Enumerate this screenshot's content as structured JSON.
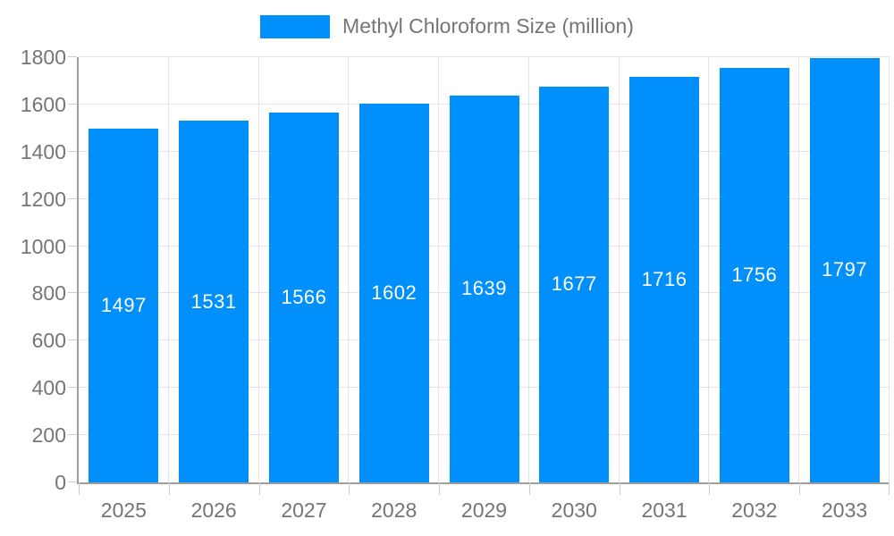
{
  "legend": {
    "label": "Methyl Chloroform Size (million)"
  },
  "chart_data": {
    "type": "bar",
    "title": "",
    "series_name": "Methyl Chloroform Size (million)",
    "categories": [
      "2025",
      "2026",
      "2027",
      "2028",
      "2029",
      "2030",
      "2031",
      "2032",
      "2033"
    ],
    "values": [
      1497,
      1531,
      1566,
      1602,
      1639,
      1677,
      1716,
      1756,
      1797
    ],
    "xlabel": "",
    "ylabel": "",
    "ylim": [
      0,
      1800
    ],
    "ytick_step": 200,
    "yticks": [
      0,
      200,
      400,
      600,
      800,
      1000,
      1200,
      1400,
      1600,
      1800
    ],
    "grid": true,
    "legend_position": "top-center",
    "data_labels": "inside-center"
  },
  "colors": {
    "bar": "#008FFB",
    "grid": "#e4e4e4",
    "axis": "#9e9e9e",
    "tick": "#cccccc",
    "text": "#757575",
    "value_label": "#ffffff"
  }
}
